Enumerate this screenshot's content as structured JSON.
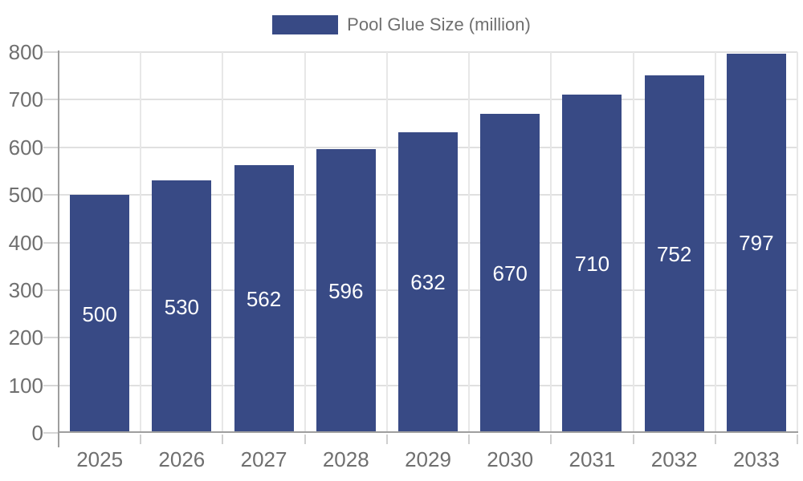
{
  "legend": {
    "label": "Pool Glue Size (million)"
  },
  "colors": {
    "bar": "#384a85",
    "axis_line": "#9e9e9e",
    "grid_horizontal": "#e0e0e0",
    "grid_vertical": "#e7e7e7",
    "y_tick": "#d6d6d6",
    "x_tick": "#cfcfcf",
    "axis_text": "#6f6f6f",
    "value_label_text": "#ffffff",
    "background": "#ffffff"
  },
  "chart_data": {
    "type": "bar",
    "title": "",
    "categories": [
      "2025",
      "2026",
      "2027",
      "2028",
      "2029",
      "2030",
      "2031",
      "2032",
      "2033"
    ],
    "series": [
      {
        "name": "Pool Glue Size (million)",
        "values": [
          500,
          530,
          562,
          596,
          632,
          670,
          710,
          752,
          797
        ]
      }
    ],
    "xlabel": "",
    "ylabel": "",
    "ylim": [
      0,
      800
    ],
    "ytick_interval": 100,
    "ytick_labels": [
      "0",
      "100",
      "200",
      "300",
      "400",
      "500",
      "600",
      "700",
      "800"
    ],
    "grid": true,
    "legend_position": "top-center",
    "value_label_position": "inside-center"
  }
}
